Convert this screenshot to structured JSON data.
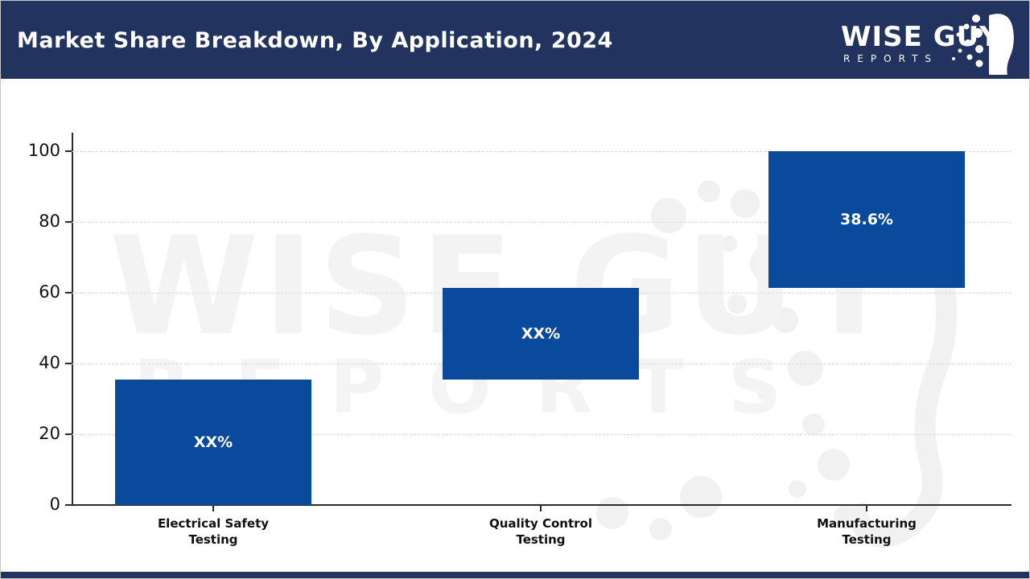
{
  "header": {
    "title": "Market Share Breakdown, By Application, 2024",
    "logo": {
      "line1": "WISE GUY",
      "line2": "REPORTS"
    }
  },
  "watermark": {
    "line1": "WISE GUY",
    "line2": "REPORTS"
  },
  "chart_data": {
    "type": "bar",
    "subtype": "waterfall-stacked-breakdown",
    "title": "Market Share Breakdown, By Application, 2024",
    "xlabel": "",
    "ylabel": "",
    "ylim": [
      0,
      105
    ],
    "yticks": [
      0,
      20,
      40,
      60,
      80,
      100
    ],
    "grid": "horizontal dashed",
    "legend": "none",
    "bar_color": "#0a4a9d",
    "bar_label_color": "#ffffff",
    "categories": [
      [
        "Electrical Safety",
        "Testing"
      ],
      [
        "Quality Control",
        "Testing"
      ],
      [
        "Manufacturing",
        "Testing"
      ]
    ],
    "bars": [
      {
        "category": "Electrical Safety Testing",
        "start": 0,
        "end": 35.5,
        "label": "XX%"
      },
      {
        "category": "Quality Control Testing",
        "start": 35.5,
        "end": 61.4,
        "label": "XX%"
      },
      {
        "category": "Manufacturing Testing",
        "start": 61.4,
        "end": 100,
        "label": "38.6%",
        "value": 38.6
      }
    ]
  },
  "colors": {
    "header_bg": "#21335e",
    "footer_bg": "#21335e",
    "bar": "#0a4a9d",
    "gridline": "#d9d9d9",
    "axis": "#2b2b2b",
    "watermark": "#f3f3f3"
  }
}
